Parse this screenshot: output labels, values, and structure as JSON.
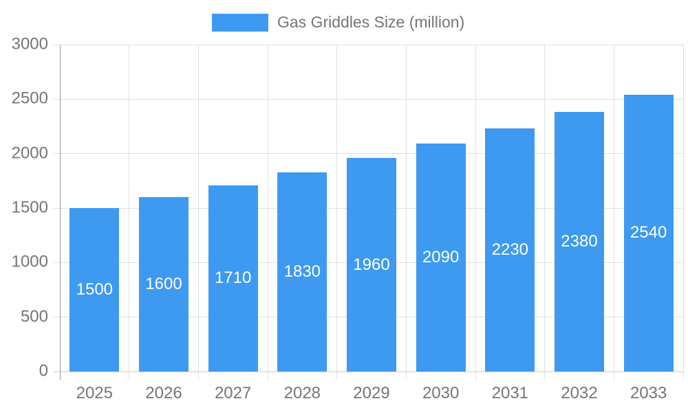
{
  "legend": {
    "label": "Gas Griddles Size (million)"
  },
  "chart_data": {
    "type": "bar",
    "title": "Gas Griddles Size (million)",
    "categories": [
      "2025",
      "2026",
      "2027",
      "2028",
      "2029",
      "2030",
      "2031",
      "2032",
      "2033"
    ],
    "series": [
      {
        "name": "Gas Griddles Size (million)",
        "values": [
          1500,
          1600,
          1710,
          1830,
          1960,
          2090,
          2230,
          2380,
          2540
        ]
      }
    ],
    "value_labels": [
      "1500",
      "1600",
      "1710",
      "1830",
      "1960",
      "2090",
      "2230",
      "2380",
      "2540"
    ],
    "xlabel": "",
    "ylabel": "",
    "ylim": [
      0,
      3000
    ],
    "ytick_step": 500,
    "ytick_labels": [
      "0",
      "500",
      "1000",
      "1500",
      "2000",
      "2500",
      "3000"
    ],
    "grid": true,
    "legend_position": "top",
    "colors": {
      "bar": "#3d9af0",
      "grid": "#e0e0e0",
      "zero_line": "#cccccc",
      "y_axis_line": "#999999",
      "tick_label": "#757575",
      "value_label": "#ffffff"
    }
  }
}
